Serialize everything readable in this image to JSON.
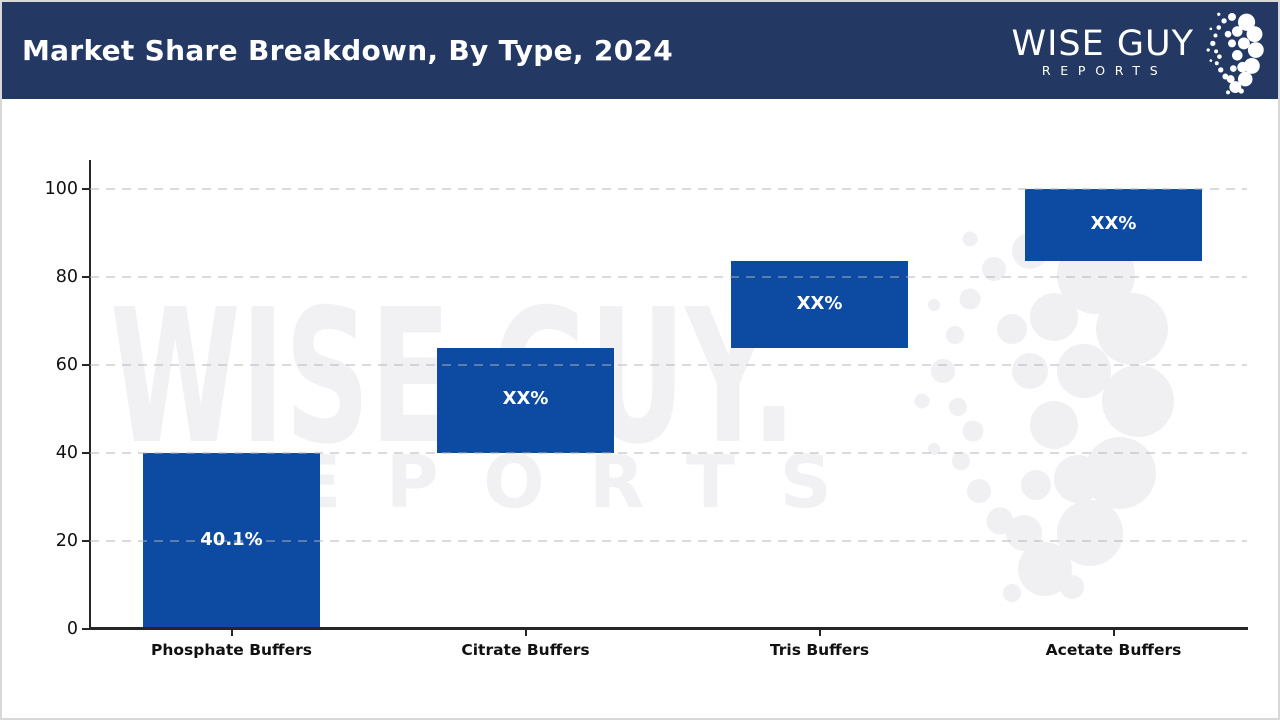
{
  "header": {
    "title": "Market Share Breakdown, By Type, 2024",
    "bg_color": "#233863",
    "logo": {
      "line1": "WISE GUY",
      "line2": "REPORTS"
    }
  },
  "watermark": {
    "line1": "WISE GUY.",
    "line2": "REPORTS"
  },
  "chart_data": {
    "type": "bar",
    "subtype": "waterfall",
    "title": "Market Share Breakdown, By Type, 2024",
    "xlabel": "",
    "ylabel": "",
    "ylim": [
      0,
      100
    ],
    "y_ticks": [
      0,
      20,
      40,
      60,
      80,
      100
    ],
    "grid": true,
    "grid_style": "dashed",
    "bar_color": "#0d4ba2",
    "label_color": "#ffffff",
    "categories": [
      "Phosphate Buffers",
      "Citrate Buffers",
      "Tris Buffers",
      "Acetate Buffers"
    ],
    "segments": [
      {
        "category": "Phosphate Buffers",
        "start": 0,
        "end": 40.1,
        "label": "40.1%"
      },
      {
        "category": "Citrate Buffers",
        "start": 40.1,
        "end": 63.9,
        "label": "XX%"
      },
      {
        "category": "Tris Buffers",
        "start": 63.9,
        "end": 83.6,
        "label": "XX%"
      },
      {
        "category": "Acetate Buffers",
        "start": 83.6,
        "end": 100,
        "label": "XX%"
      }
    ]
  }
}
